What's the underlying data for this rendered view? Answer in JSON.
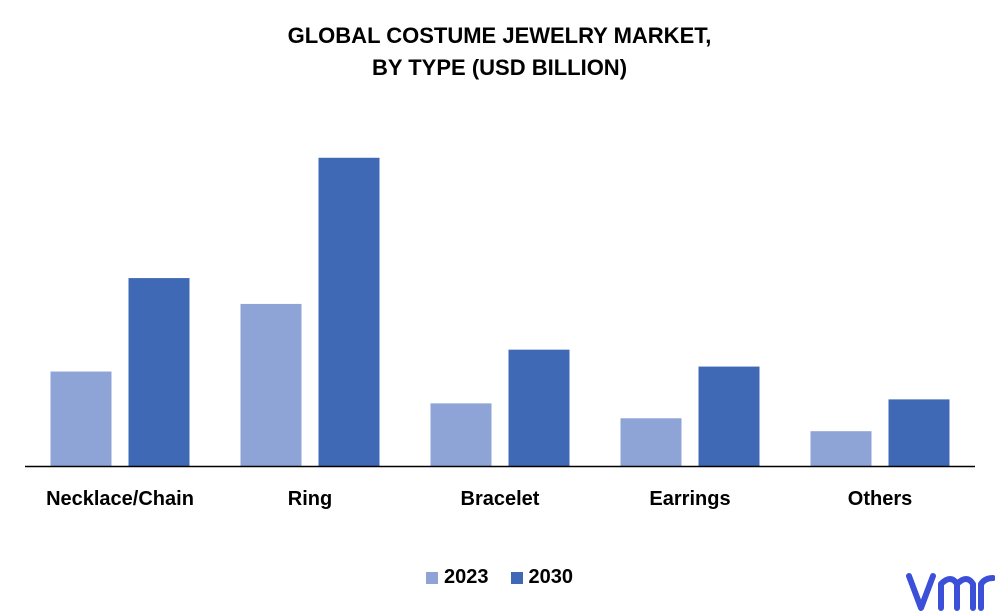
{
  "chart_data": {
    "type": "bar",
    "title": "GLOBAL COSTUME JEWELRY MARKET,",
    "subtitle": "BY TYPE (USD BILLION)",
    "categories": [
      "Necklace/Chain",
      "Ring",
      "Bracelet",
      "Earrings",
      "Others"
    ],
    "series": [
      {
        "name": "2023",
        "color": "#8EA3D6",
        "values": [
          9.5,
          16.3,
          6.3,
          4.8,
          3.5
        ]
      },
      {
        "name": "2030",
        "color": "#3F68B5",
        "values": [
          18.9,
          31.0,
          11.7,
          10.0,
          6.7
        ]
      }
    ],
    "ylim": [
      0,
      35
    ],
    "grid": false,
    "legend_position": "bottom"
  },
  "logo": {
    "icon": "vmr-logo-icon",
    "color": "#3B4FD8"
  }
}
